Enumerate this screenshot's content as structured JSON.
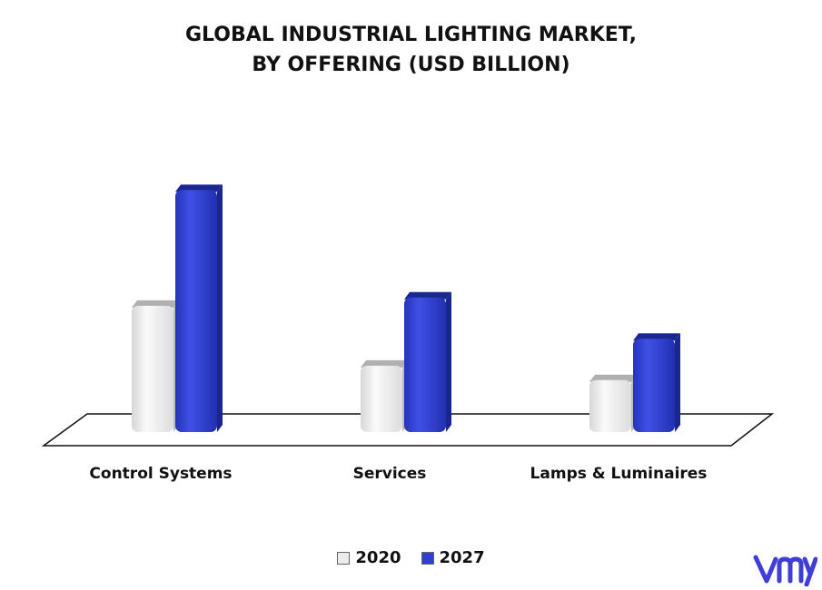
{
  "chart_data": {
    "type": "bar",
    "title": [
      "GLOBAL INDUSTRIAL LIGHTING MARKET,",
      "BY OFFERING (USD BILLION)"
    ],
    "categories": [
      "Control Systems",
      "Services",
      "Lamps & Luminaires"
    ],
    "series": [
      {
        "name": "2020",
        "color": "#ececec",
        "values": [
          3.1,
          1.65,
          1.3
        ]
      },
      {
        "name": "2027",
        "color": "#2f3fd0",
        "values": [
          5.9,
          3.3,
          2.3
        ]
      }
    ],
    "ylim": [
      0,
      6.5
    ],
    "grid": false,
    "legend": "bottom"
  }
}
